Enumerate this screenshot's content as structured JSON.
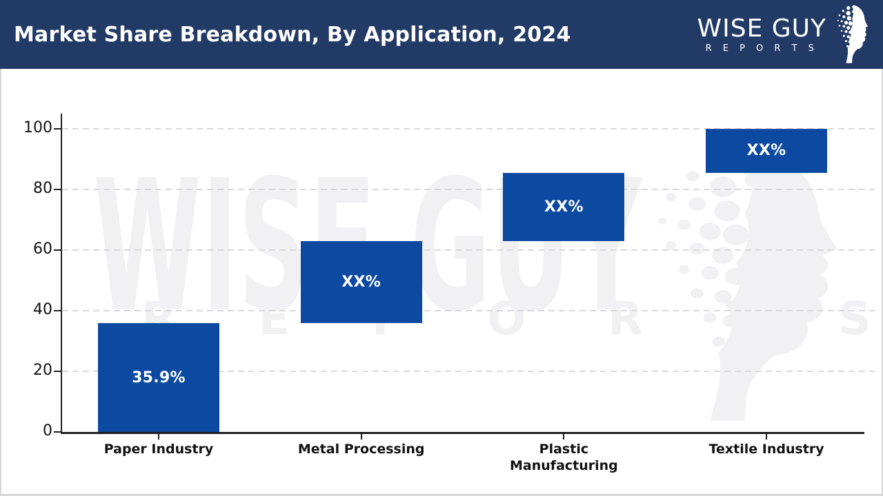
{
  "header": {
    "title": "Market Share Breakdown, By Application, 2024",
    "bg_color": "#223a66",
    "text_color": "#ffffff",
    "logo": {
      "wordmark": "WISE GUY",
      "subtext": "R E P O R T S",
      "head_icon": "dotted-profile-head"
    }
  },
  "watermark": {
    "wordmark": "WISE GUY",
    "subtext": "R E P O R T S",
    "color": "#f1f1f3"
  },
  "page": {
    "background": "#ffffff",
    "border_color": "#d6d6d6"
  },
  "chart_data": {
    "type": "bar",
    "subtype": "waterfall-stacked",
    "title": "Market Share Breakdown, By Application, 2024",
    "categories": [
      "Paper Industry",
      "Metal Processing",
      "Plastic Manufacturing",
      "Textile Industry"
    ],
    "bars": [
      {
        "category": "Paper Industry",
        "start": 0,
        "end": 35.9,
        "label": "35.9%"
      },
      {
        "category": "Metal Processing",
        "start": 35.9,
        "end": 63.0,
        "label": "XX%"
      },
      {
        "category": "Plastic Manufacturing",
        "start": 63.0,
        "end": 85.5,
        "label": "XX%"
      },
      {
        "category": "Textile Industry",
        "start": 85.5,
        "end": 100.0,
        "label": "XX%"
      }
    ],
    "xlabel": "",
    "ylabel": "",
    "ylim": [
      0,
      100
    ],
    "yticks": [
      0,
      20,
      40,
      60,
      80,
      100
    ],
    "grid": "horizontal-dashed",
    "legend": "none",
    "bar_color": "#0c4aa2",
    "bar_label_color": "#ffffff",
    "axis_color": "#1f1f1f",
    "grid_color": "#d9d9d9",
    "tick_label_color": "#111111"
  }
}
